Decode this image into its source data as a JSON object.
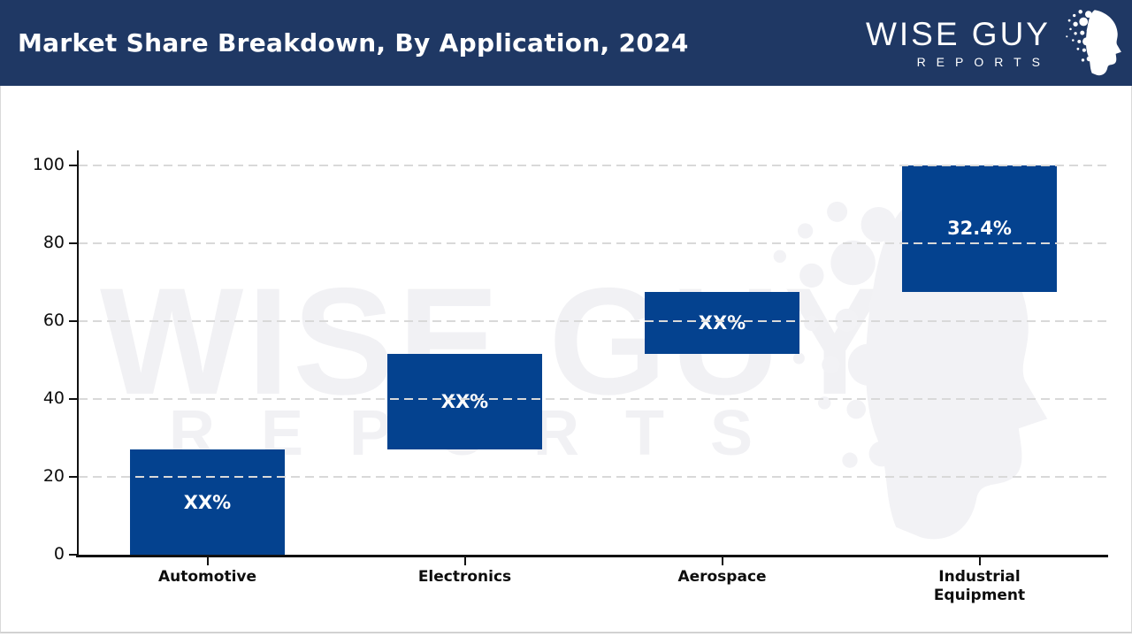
{
  "header": {
    "title": "Market Share Breakdown, By Application, 2024",
    "bg_color": "#1f3864",
    "logo": {
      "line1": "WISE GUY",
      "line2": "REPORTS"
    }
  },
  "watermark": {
    "line1": "WISE GUY",
    "line2": "REPORTS"
  },
  "chart_data": {
    "type": "bar",
    "subtype": "waterfall-floating-bars",
    "title": "Market Share Breakdown, By Application, 2024",
    "categories": [
      "Automotive",
      "Electronics",
      "Aerospace",
      "Industrial Equipment"
    ],
    "segments": [
      {
        "category": "Automotive",
        "start": 0,
        "end": 27,
        "label": "XX%"
      },
      {
        "category": "Electronics",
        "start": 27,
        "end": 51.5,
        "label": "XX%"
      },
      {
        "category": "Aerospace",
        "start": 51.5,
        "end": 67.6,
        "label": "XX%"
      },
      {
        "category": "Industrial Equipment",
        "start": 67.6,
        "end": 100,
        "label": "32.4%"
      }
    ],
    "xlabel": "",
    "ylabel": "",
    "ylim": [
      0,
      100
    ],
    "yticks": [
      0,
      20,
      40,
      60,
      80,
      100
    ],
    "grid": "horizontal-dashed-above-bars",
    "gridline_color": "#d9d9d9",
    "bar_color": "#04428f",
    "axis_color": "#111111",
    "legend": "none"
  }
}
